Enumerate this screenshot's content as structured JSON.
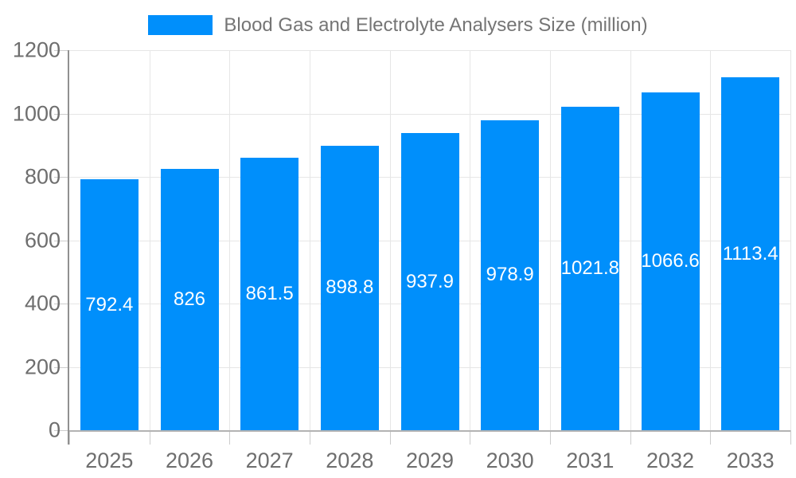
{
  "chart_data": {
    "type": "bar",
    "title": "Blood Gas and Electrolyte Analysers Size (million)",
    "categories": [
      "2025",
      "2026",
      "2027",
      "2028",
      "2029",
      "2030",
      "2031",
      "2032",
      "2033"
    ],
    "series": [
      {
        "name": "Blood Gas and Electrolyte Analysers Size (million)",
        "values": [
          792.4,
          826,
          861.5,
          898.8,
          937.9,
          978.9,
          1021.8,
          1066.6,
          1113.4
        ]
      }
    ],
    "value_labels": [
      "792.4",
      "826",
      "861.5",
      "898.8",
      "937.9",
      "978.9",
      "1021.8",
      "1066.6",
      "1113.4"
    ],
    "xlabel": "",
    "ylabel": "",
    "ylim": [
      0,
      1200
    ],
    "y_ticks": [
      0,
      200,
      400,
      600,
      800,
      1000,
      1200
    ],
    "y_tick_labels": [
      "0",
      "200",
      "400",
      "600",
      "800",
      "1000",
      "1200"
    ],
    "grid": true,
    "legend_position": "top",
    "colors": {
      "bar": "#008FFB",
      "value_label": "#FFFFFF",
      "axis_label": "#6E6E6E",
      "legend_text": "#757575",
      "gridline": "#E6E6E6",
      "tick": "#CCCCCC",
      "y_axis_line": "#919191",
      "baseline": "#B3B3B3",
      "background": "#FFFFFF"
    }
  }
}
